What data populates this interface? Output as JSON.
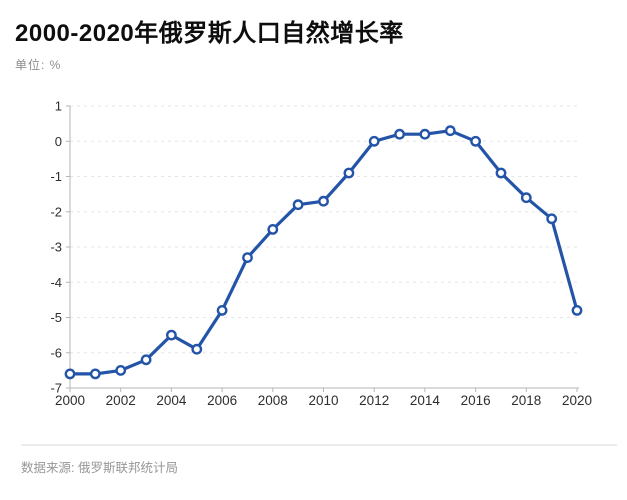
{
  "page": {
    "title": "2000-2020年俄罗斯人口自然增长率",
    "unit_label": "单位: %",
    "source": "数据来源: 俄罗斯联邦统计局"
  },
  "chart_data": {
    "type": "line",
    "title": "2000-2020年俄罗斯人口自然增长率",
    "xlabel": "",
    "ylabel": "单位: %",
    "x": [
      2000,
      2001,
      2002,
      2003,
      2004,
      2005,
      2006,
      2007,
      2008,
      2009,
      2010,
      2011,
      2012,
      2013,
      2014,
      2015,
      2016,
      2017,
      2018,
      2019,
      2020
    ],
    "values": [
      -6.6,
      -6.6,
      -6.5,
      -6.2,
      -5.5,
      -5.9,
      -4.8,
      -3.3,
      -2.5,
      -1.8,
      -1.7,
      -0.9,
      0.0,
      0.2,
      0.2,
      0.3,
      0.0,
      -0.9,
      -1.6,
      -2.2,
      -4.8
    ],
    "ylim": [
      -7,
      1
    ],
    "yticks": [
      1,
      0,
      -1,
      -2,
      -3,
      -4,
      -5,
      -6,
      -7
    ],
    "xticks": [
      2000,
      2002,
      2004,
      2006,
      2008,
      2010,
      2012,
      2014,
      2016,
      2018,
      2020
    ],
    "grid": "horizontal-dashed",
    "legend": "none",
    "marker": "open-circle",
    "colors": {
      "line": "#2354a7",
      "marker_fill": "#ffffff",
      "grid": "#e5e5e5",
      "axis": "#b5b5b5",
      "tick_text": "#2e2e2e"
    }
  }
}
